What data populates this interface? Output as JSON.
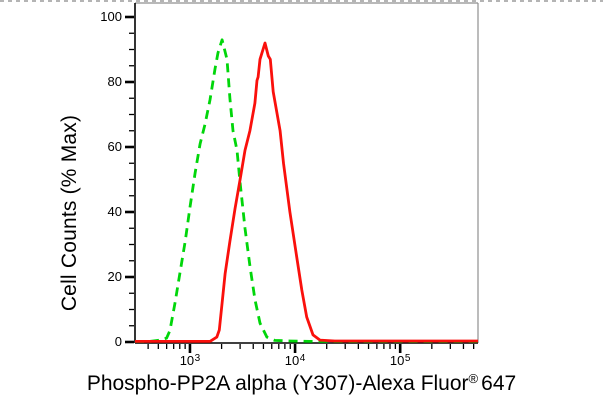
{
  "figure": {
    "background": "#ffffff",
    "axis_color": "#000000",
    "frame_color": "#8f8f8f",
    "top_border_style": "dashed-gray"
  },
  "y_axis": {
    "title": "Cell Counts (% Max)",
    "tick_labels": [
      "0",
      "20",
      "40",
      "60",
      "80",
      "100"
    ]
  },
  "x_axis": {
    "tick_base": "10",
    "tick_exponents": [
      "3",
      "4",
      "5"
    ],
    "title_main": "Phospho-PP2A alpha (Y307)-Alexa Fluor",
    "title_sup": "®",
    "title_end": "647"
  },
  "chart_data": {
    "type": "line",
    "subtype": "flow-cytometry-histogram-overlay",
    "title": "",
    "xlabel": "Phospho-PP2A alpha (Y307)-Alexa Fluor® 647",
    "ylabel": "Cell Counts (% Max)",
    "x_scale": "log10",
    "xlim": [
      300,
      550000
    ],
    "ylim": [
      0,
      100
    ],
    "x_ticks_major": [
      1000,
      10000,
      100000
    ],
    "y_ticks_major": [
      0,
      20,
      40,
      60,
      80,
      100
    ],
    "y_minor_step": 5,
    "grid": false,
    "legend_position": "none",
    "series": [
      {
        "name": "control-green-dashed",
        "color": "#00d60a",
        "line_style": "dashed",
        "peak_x": 2000,
        "peak_y": 93,
        "points": [
          [
            300,
            0.2
          ],
          [
            415,
            0.2
          ],
          [
            520,
            0.6
          ],
          [
            600,
            1.2
          ],
          [
            645,
            3.5
          ],
          [
            720,
            12
          ],
          [
            800,
            21
          ],
          [
            900,
            31
          ],
          [
            1000,
            41.5
          ],
          [
            1120,
            52
          ],
          [
            1250,
            61
          ],
          [
            1390,
            67
          ],
          [
            1550,
            74.5
          ],
          [
            1730,
            84
          ],
          [
            1850,
            89
          ],
          [
            2020,
            93
          ],
          [
            2250,
            87
          ],
          [
            2400,
            75
          ],
          [
            2570,
            65
          ],
          [
            2800,
            59
          ],
          [
            3000,
            49
          ],
          [
            3340,
            35
          ],
          [
            3730,
            23
          ],
          [
            4160,
            13
          ],
          [
            4640,
            5.8
          ],
          [
            5390,
            1.5
          ],
          [
            6420,
            0.5
          ],
          [
            8920,
            0.3
          ],
          [
            13900,
            0.2
          ],
          [
            550000,
            0.2
          ]
        ]
      },
      {
        "name": "phospho-pp2a-stained-red-solid",
        "color": "#fa100c",
        "line_style": "solid",
        "peak_x": 5200,
        "peak_y": 92,
        "points": [
          [
            300,
            0.2
          ],
          [
            1550,
            0.2
          ],
          [
            1800,
            1.5
          ],
          [
            1900,
            3.7
          ],
          [
            2020,
            12
          ],
          [
            2160,
            21
          ],
          [
            2400,
            31
          ],
          [
            2680,
            41
          ],
          [
            3000,
            50
          ],
          [
            3340,
            59
          ],
          [
            3720,
            65
          ],
          [
            4150,
            73.5
          ],
          [
            4340,
            80.5
          ],
          [
            4450,
            81.5
          ],
          [
            4640,
            87
          ],
          [
            5180,
            92
          ],
          [
            5560,
            88
          ],
          [
            5810,
            87
          ],
          [
            6200,
            77
          ],
          [
            7200,
            65
          ],
          [
            7760,
            55
          ],
          [
            8920,
            40
          ],
          [
            10380,
            26
          ],
          [
            11600,
            16
          ],
          [
            12900,
            7.7
          ],
          [
            14800,
            2.2
          ],
          [
            17250,
            0.6
          ],
          [
            23900,
            0.3
          ],
          [
            550000,
            0.3
          ]
        ]
      }
    ]
  }
}
